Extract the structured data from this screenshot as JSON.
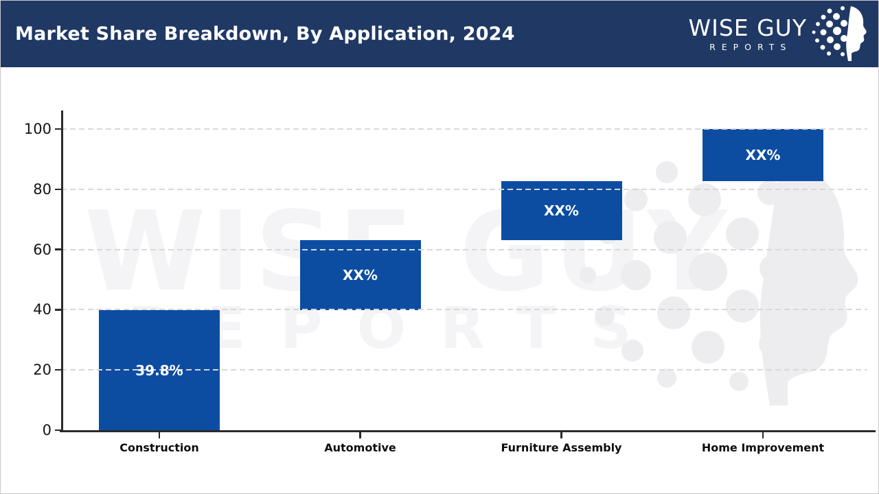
{
  "header": {
    "title": "Market Share Breakdown, By Application, 2024",
    "bg_color": "#1f3864",
    "logo": {
      "line1": "WISE GUY",
      "line2": "REPORTS"
    }
  },
  "watermark": {
    "line1": "WISE GUY",
    "line2": "REPORTS"
  },
  "chart_data": {
    "type": "bar",
    "subtype": "waterfall-stacked-percentage",
    "title": "Market Share Breakdown, By Application, 2024",
    "categories": [
      "Construction",
      "Automotive",
      "Furniture Assembly",
      "Home Improvement"
    ],
    "segments": [
      {
        "category": "Construction",
        "start": 0,
        "end": 39.8,
        "label": "39.8%"
      },
      {
        "category": "Automotive",
        "start": 39.8,
        "end": 63.2,
        "label": "XX%"
      },
      {
        "category": "Furniture Assembly",
        "start": 63.2,
        "end": 82.8,
        "label": "XX%"
      },
      {
        "category": "Home Improvement",
        "start": 82.8,
        "end": 100,
        "label": "XX%"
      }
    ],
    "y_axis": {
      "min": 0,
      "max": 100,
      "ticks": [
        0,
        20,
        40,
        60,
        80,
        100
      ]
    },
    "xlabel": "",
    "ylabel": "",
    "grid": "horizontal-dashed",
    "legend": "none",
    "bar_color": "#0c4da2",
    "value_label_color": "#ffffff",
    "axis_color": "#2a2a2a",
    "grid_color": "#d8d8d8"
  }
}
